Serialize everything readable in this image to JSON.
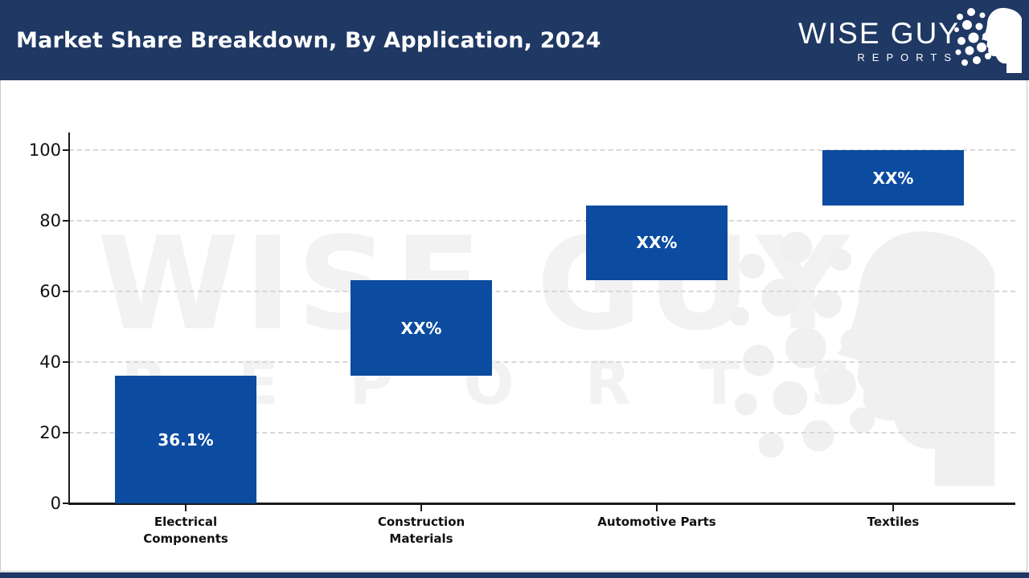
{
  "header": {
    "title": "Market Share Breakdown, By Application, 2024",
    "logo": {
      "line1": "WISE GUY",
      "line2": "REPORTS"
    },
    "bg_color": "#1f3864"
  },
  "watermark": {
    "line1": "WISE GUY",
    "line2": "REPORTS"
  },
  "chart_data": {
    "type": "bar",
    "subtype": "stacked-waterfall",
    "title": "Market Share Breakdown, By Application, 2024",
    "xlabel": "",
    "ylabel": "",
    "categories": [
      "Electrical Components",
      "Construction Materials",
      "Automotive Parts",
      "Textiles"
    ],
    "segments": [
      {
        "category": "Electrical Components",
        "category_lines": "Electrical\nComponents",
        "start": 0,
        "end": 36.1,
        "label": "36.1%"
      },
      {
        "category": "Construction Materials",
        "category_lines": "Construction\nMaterials",
        "start": 36.1,
        "end": 63.2,
        "label": "XX%"
      },
      {
        "category": "Automotive Parts",
        "category_lines": "Automotive Parts",
        "start": 63.2,
        "end": 84.3,
        "label": "XX%"
      },
      {
        "category": "Textiles",
        "category_lines": "Textiles",
        "start": 84.3,
        "end": 100,
        "label": "XX%"
      }
    ],
    "yticks": [
      0,
      20,
      40,
      60,
      80,
      100
    ],
    "ylim": [
      0,
      105
    ],
    "bar_color": "#0b4ba0",
    "label_color": "#ffffff",
    "grid": "dashed-horizontal",
    "legend": "none"
  }
}
